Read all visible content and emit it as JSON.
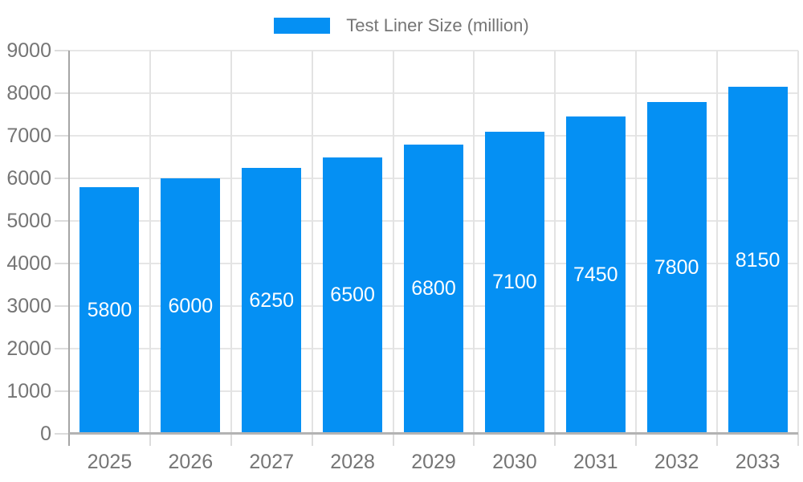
{
  "legend": {
    "label": "Test Liner Size (million)"
  },
  "chart_data": {
    "type": "bar",
    "title": "Test Liner Size (million)",
    "categories": [
      "2025",
      "2026",
      "2027",
      "2028",
      "2029",
      "2030",
      "2031",
      "2032",
      "2033"
    ],
    "series": [
      {
        "name": "Test Liner Size (million)",
        "values": [
          5800,
          6000,
          6250,
          6500,
          6800,
          7100,
          7450,
          7800,
          8150
        ]
      }
    ],
    "value_labels": [
      "5800",
      "6000",
      "6250",
      "6500",
      "6800",
      "7100",
      "7450",
      "7800",
      "8150"
    ],
    "xlabel": "",
    "ylabel": "",
    "ylim": [
      0,
      9000
    ],
    "yticks": [
      0,
      1000,
      2000,
      3000,
      4000,
      5000,
      6000,
      7000,
      8000,
      9000
    ],
    "grid": true,
    "legend_position": "top"
  },
  "colors": {
    "bar": "#0590f3",
    "value_label": "#ffffff",
    "axis_text": "#757575",
    "legend_text": "#757575",
    "gridline": "#e6e6e6",
    "vertical_gridline": "#e3e3e3",
    "tick": "#dcdcdc",
    "axis_line": "#a6a6a6",
    "baseline": "#b3b3b3",
    "background": "#ffffff"
  }
}
